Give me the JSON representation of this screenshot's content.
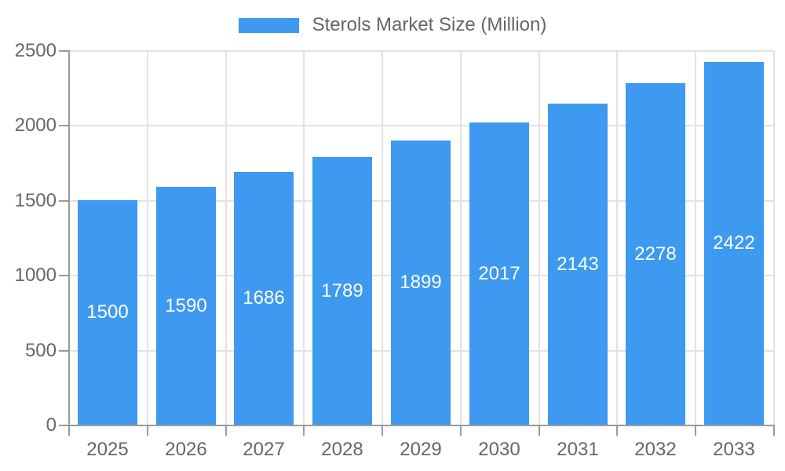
{
  "chart_data": {
    "type": "bar",
    "title": "Sterols Market Size (Million)",
    "series_name": "Sterols Market Size (Million)",
    "categories": [
      "2025",
      "2026",
      "2027",
      "2028",
      "2029",
      "2030",
      "2031",
      "2032",
      "2033"
    ],
    "values": [
      1500,
      1590,
      1686,
      1789,
      1899,
      2017,
      2143,
      2278,
      2422
    ],
    "bar_labels": [
      "1500",
      "1590",
      "1686",
      "1789",
      "1899",
      "2017",
      "2143",
      "2278",
      "2422"
    ],
    "xlabel": "",
    "ylabel": "",
    "ylim": [
      0,
      2500
    ],
    "yticks": [
      0,
      500,
      1000,
      1500,
      2000,
      2500
    ],
    "ytick_labels": [
      "0",
      "500",
      "1000",
      "1500",
      "2000",
      "2500"
    ],
    "grid": true,
    "legend_position": "top",
    "colors": {
      "bar": "#3D9AF0",
      "grid": "#E2E2E2",
      "axis": "#9A9A9A",
      "tick_label": "#666666",
      "bar_label": "#FFFFFF"
    }
  }
}
